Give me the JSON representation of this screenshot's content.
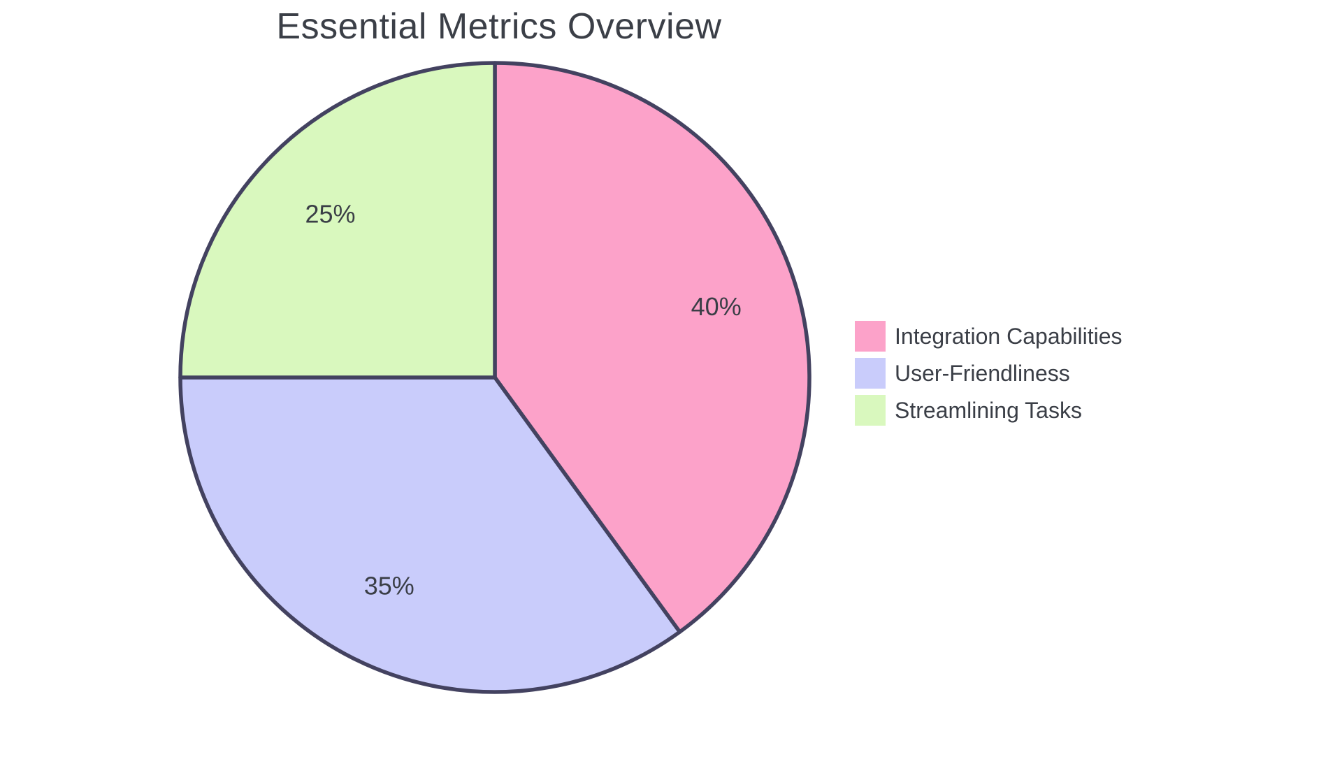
{
  "chart_data": {
    "type": "pie",
    "title": "Essential Metrics Overview",
    "slices": [
      {
        "label": "Integration Capabilities",
        "value": 40,
        "pct_label": "40%",
        "color": "#FCA2C9"
      },
      {
        "label": "User-Friendliness",
        "value": 35,
        "pct_label": "35%",
        "color": "#C9CCFB"
      },
      {
        "label": "Streamlining Tasks",
        "value": 25,
        "pct_label": "25%",
        "color": "#D9F8BE"
      }
    ],
    "start_angle_deg": 0,
    "direction": "clockwise",
    "legend_position": "right",
    "stroke_color": "#434260",
    "label_color": "#3A3E46",
    "title_color": "#3B3F47",
    "background": "#FFFFFF"
  }
}
